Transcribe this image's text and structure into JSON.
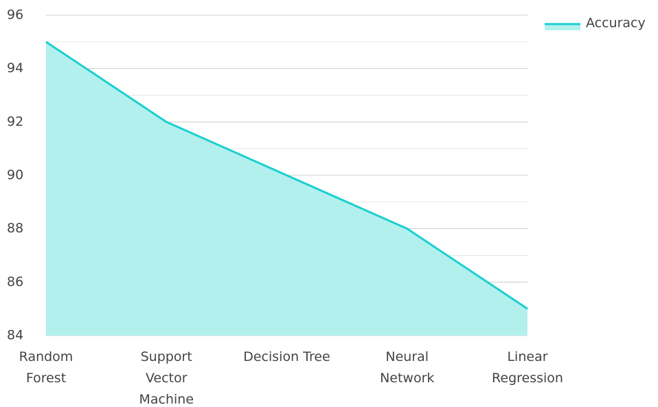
{
  "chart_data": {
    "type": "area",
    "categories": [
      "Random Forest",
      "Support Vector Machine",
      "Decision Tree",
      "Neural Network",
      "Linear Regression"
    ],
    "series": [
      {
        "name": "Accuracy",
        "color": "#1ccfcf",
        "fill": "#b2f0ee",
        "values": [
          95,
          92,
          90,
          88,
          85
        ]
      }
    ],
    "ylim": [
      84,
      96
    ],
    "yticks": [
      84,
      86,
      88,
      90,
      92,
      94,
      96
    ],
    "yminor": [
      85,
      87,
      89,
      91,
      93,
      95
    ],
    "grid": true,
    "legend": "top-right"
  }
}
